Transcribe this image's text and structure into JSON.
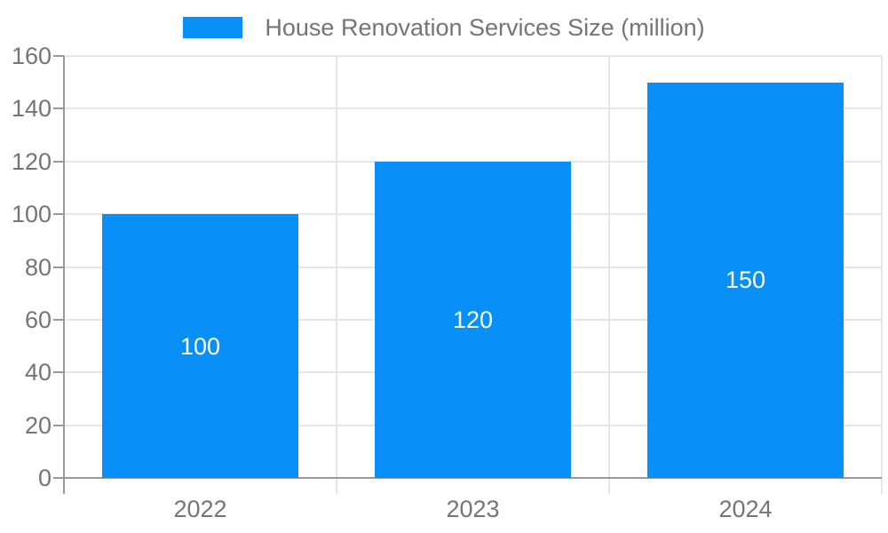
{
  "legend": {
    "position": "top",
    "items": [
      {
        "label": "House Renovation Services Size (million)",
        "color": "#0890f8"
      }
    ]
  },
  "chart_data": {
    "type": "bar",
    "title": "House Renovation Services Size (million)",
    "categories": [
      "2022",
      "2023",
      "2024"
    ],
    "values": [
      100,
      120,
      150
    ],
    "bar_labels": [
      "100",
      "120",
      "150"
    ],
    "bar_label_position": "inside-center",
    "xlabel": "",
    "ylabel": "",
    "ylim": [
      0,
      160
    ],
    "ytick_step": 20,
    "yticks": [
      0,
      20,
      40,
      60,
      80,
      100,
      120,
      140,
      160
    ],
    "grid": true,
    "legend_position": "top",
    "colors": {
      "bar": "#0890f8",
      "bar_label": "#ffffff",
      "axis": "#999999",
      "grid": "#e6e6e6",
      "text": "#757575",
      "background": "#ffffff"
    }
  }
}
